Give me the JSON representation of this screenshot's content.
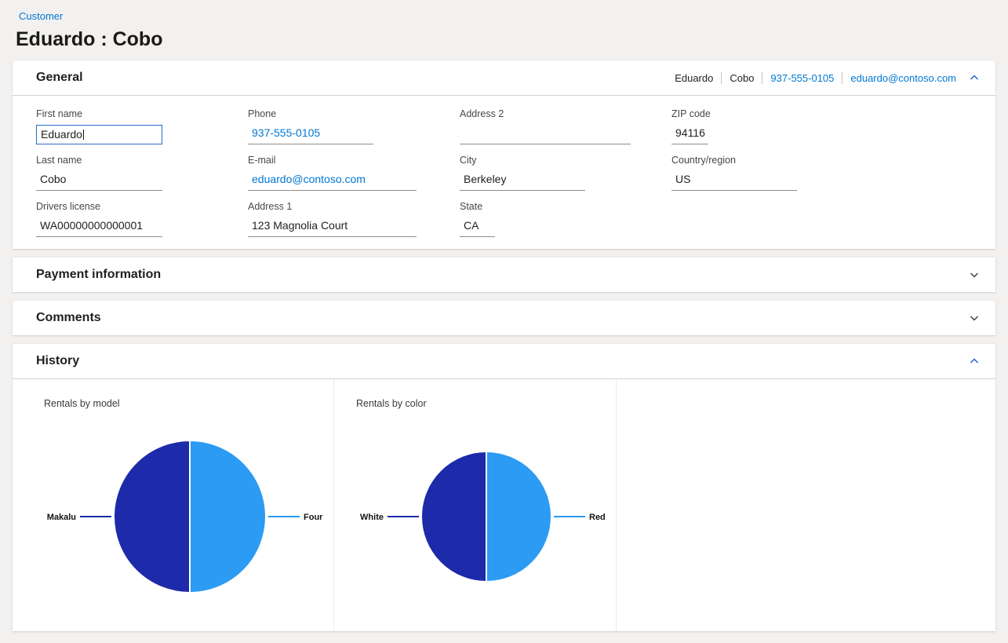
{
  "page": {
    "breadcrumb": "Customer",
    "title": "Eduardo : Cobo"
  },
  "colors": {
    "accent": "#0078d4",
    "pie_dark_blue": "#1d2aa9",
    "pie_bright_blue": "#2b9bf4"
  },
  "icons": {
    "expanded_section": "chevron-up-icon",
    "collapsed_section": "chevron-down-icon"
  },
  "general": {
    "title": "General",
    "expanded": true,
    "summary": {
      "first_name": "Eduardo",
      "last_name": "Cobo",
      "phone": "937-555-0105",
      "email": "eduardo@contoso.com"
    },
    "fields": {
      "first_name": {
        "label": "First name",
        "value": "Eduardo",
        "focused": true
      },
      "phone": {
        "label": "Phone",
        "value": "937-555-0105"
      },
      "address2": {
        "label": "Address 2",
        "value": ""
      },
      "zip": {
        "label": "ZIP code",
        "value": "94116"
      },
      "last_name": {
        "label": "Last name",
        "value": "Cobo"
      },
      "email": {
        "label": "E-mail",
        "value": "eduardo@contoso.com"
      },
      "city": {
        "label": "City",
        "value": "Berkeley"
      },
      "country": {
        "label": "Country/region",
        "value": "US"
      },
      "drivers_license": {
        "label": "Drivers license",
        "value": "WA00000000000001"
      },
      "address1": {
        "label": "Address 1",
        "value": "123 Magnolia Court"
      },
      "state": {
        "label": "State",
        "value": "CA"
      }
    }
  },
  "payment": {
    "title": "Payment information",
    "expanded": false
  },
  "comments": {
    "title": "Comments",
    "expanded": false
  },
  "history": {
    "title": "History",
    "expanded": true
  },
  "chart_data": [
    {
      "type": "pie",
      "title": "Rentals by model",
      "labels": [
        "Makalu",
        "Four"
      ],
      "values": [
        1,
        1
      ],
      "colors": [
        "#1d2aa9",
        "#2b9bf4"
      ],
      "label_sides": [
        "left",
        "right"
      ],
      "legend": "none"
    },
    {
      "type": "pie",
      "title": "Rentals by color",
      "labels": [
        "White",
        "Red"
      ],
      "values": [
        1,
        1
      ],
      "colors": [
        "#1d2aa9",
        "#2b9bf4"
      ],
      "label_sides": [
        "left",
        "right"
      ],
      "legend": "none"
    }
  ]
}
